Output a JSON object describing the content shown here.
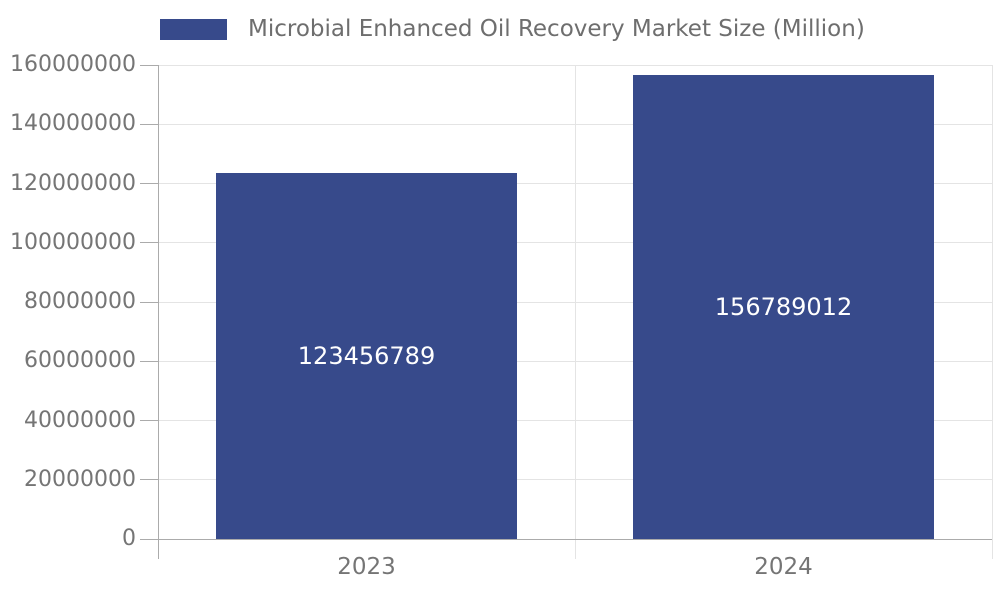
{
  "chart_data": {
    "type": "bar",
    "title": "Microbial Enhanced Oil Recovery Market Size (Million)",
    "categories": [
      "2023",
      "2024"
    ],
    "series": [
      {
        "name": "Microbial Enhanced Oil Recovery Market Size (Million)",
        "color": "#374A8B",
        "values": [
          123456789,
          156789012
        ]
      }
    ],
    "bar_value_labels": [
      "123456789",
      "156789012"
    ],
    "xlabel": "",
    "ylabel": "",
    "ylim": [
      0,
      160000000
    ],
    "ytick_step": 20000000,
    "ytick_labels": [
      "0",
      "20000000",
      "40000000",
      "60000000",
      "80000000",
      "100000000",
      "120000000",
      "140000000",
      "160000000"
    ],
    "grid": true,
    "legend_position": "top-left",
    "bar_labels_inside": true
  },
  "colors": {
    "bar": "#374A8B",
    "grid": "#E4E4E4",
    "axis": "#ABABAB",
    "tick_text": "#757575",
    "title_text": "#6E6E6E",
    "bar_label_text": "#FFFFFF",
    "background": "#FFFFFF"
  }
}
